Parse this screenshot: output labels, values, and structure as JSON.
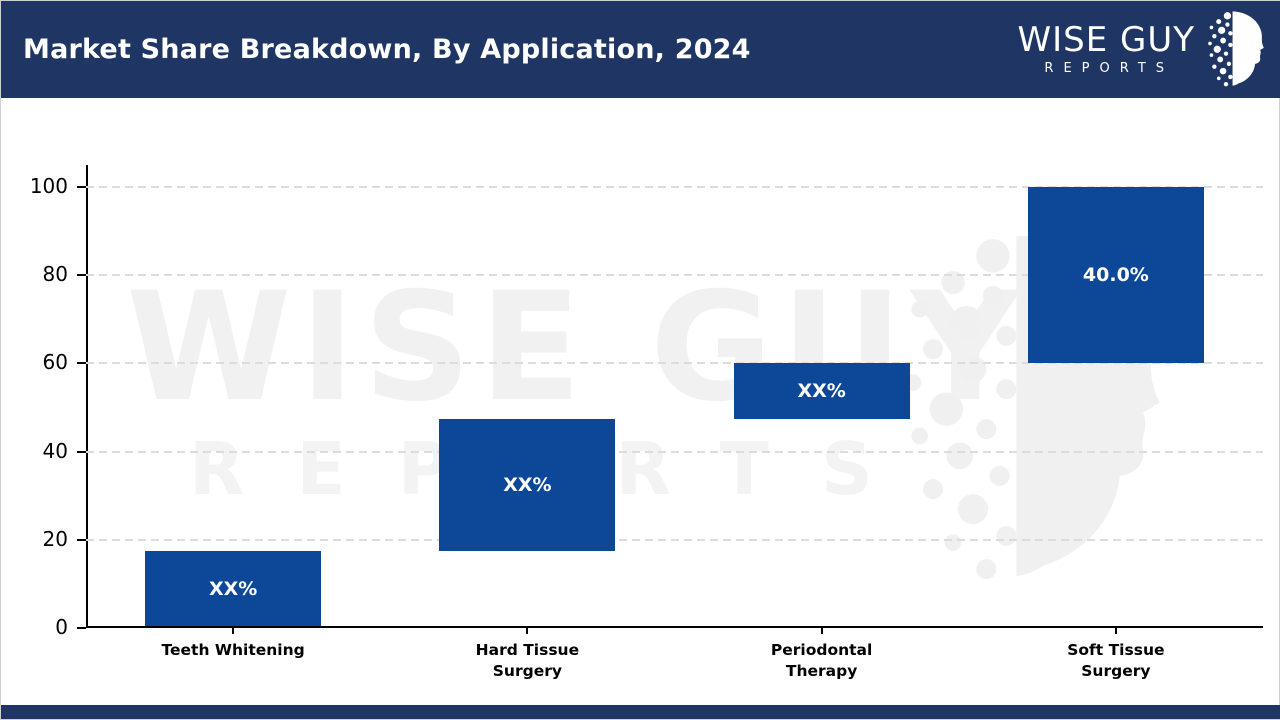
{
  "header": {
    "title": "Market Share Breakdown, By Application, 2024",
    "logo_line1": "WISE GUY",
    "logo_line2": "REPORTS",
    "bg_color": "#1f3563"
  },
  "watermark": {
    "line1": "WISE GUY",
    "line2": "REPORTS"
  },
  "chart_data": {
    "type": "bar",
    "subtype": "waterfall",
    "title": "Market Share Breakdown, By Application, 2024",
    "categories": [
      "Teeth Whitening",
      "Hard Tissue\nSurgery",
      "Periodontal\nTherapy",
      "Soft Tissue\nSurgery"
    ],
    "series": [
      {
        "name": "Market Share (%)",
        "segments": [
          {
            "category": "Teeth Whitening",
            "start": 0,
            "end": 17.5,
            "label": "XX%"
          },
          {
            "category": "Hard Tissue Surgery",
            "start": 17.5,
            "end": 47.5,
            "label": "XX%"
          },
          {
            "category": "Periodontal Therapy",
            "start": 47.5,
            "end": 60,
            "label": "XX%"
          },
          {
            "category": "Soft Tissue Surgery",
            "start": 60,
            "end": 100,
            "label": "40.0%"
          }
        ]
      }
    ],
    "yticks": [
      0,
      20,
      40,
      60,
      80,
      100
    ],
    "ylim": [
      0,
      105
    ],
    "xlabel": "",
    "ylabel": "",
    "grid": true,
    "legend": false,
    "bar_color": "#0d4898",
    "bar_label_color": "#ffffff",
    "grid_color": "#dcdcdc",
    "axis_color": "#000000",
    "tick_label_color": "#000000"
  }
}
